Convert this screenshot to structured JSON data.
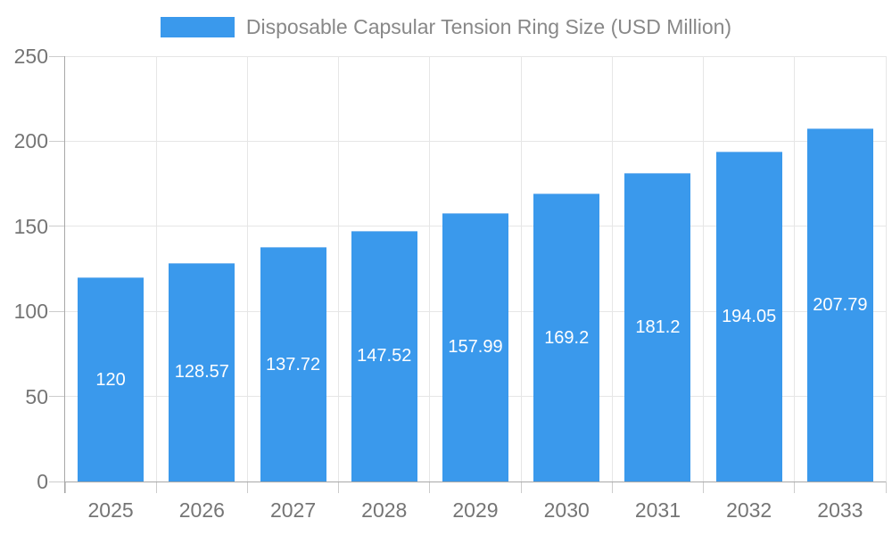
{
  "legend": {
    "label": "Disposable Capsular Tension Ring Size (USD Million)"
  },
  "chart_data": {
    "type": "bar",
    "title": "Disposable Capsular Tension Ring Size (USD Million)",
    "categories": [
      "2025",
      "2026",
      "2027",
      "2028",
      "2029",
      "2030",
      "2031",
      "2032",
      "2033"
    ],
    "values": [
      120,
      128.57,
      137.72,
      147.52,
      157.99,
      169.2,
      181.2,
      194.05,
      207.79
    ],
    "value_labels": [
      "120",
      "128.57",
      "137.72",
      "147.52",
      "157.99",
      "169.2",
      "181.2",
      "194.05",
      "207.79"
    ],
    "xlabel": "",
    "ylabel": "",
    "ylim": [
      0,
      250
    ],
    "yticks": [
      0,
      50,
      100,
      150,
      200,
      250
    ],
    "grid": true,
    "legend_position": "top-center",
    "colors": {
      "bar_fill": "#3A99EC",
      "bar_edge": "#85BDF1",
      "bar_label_text": "#FFFFFF",
      "legend_text": "#888888",
      "axis_label_text": "#757575",
      "axis_line": "#A8A8A8",
      "tick_line": "#CCCCCC",
      "gridline": "#E6E6E6",
      "background": "#FFFFFF"
    }
  }
}
